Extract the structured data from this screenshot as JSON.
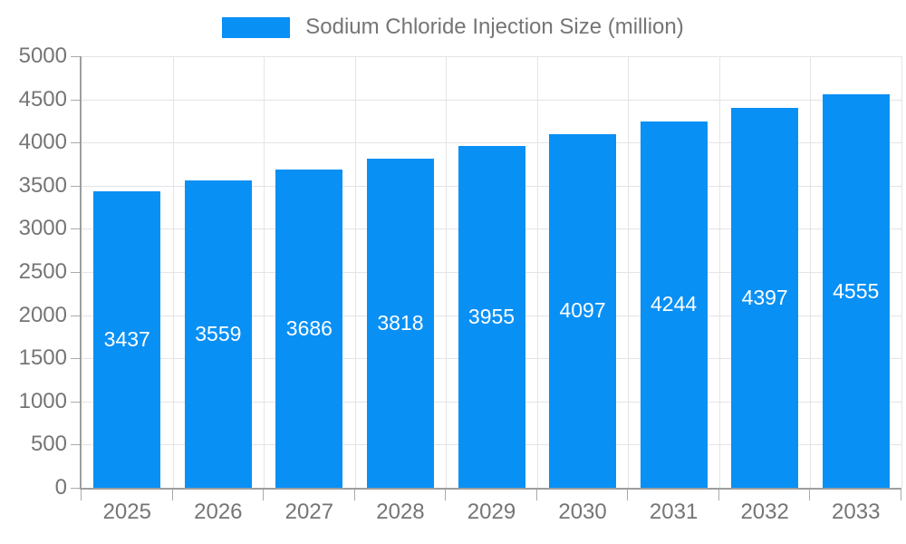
{
  "legend": {
    "label": "Sodium Chloride Injection Size (million)"
  },
  "colors": {
    "bar": "#0990f5",
    "grid": "#e4e4e8",
    "axis": "#9e9e9e",
    "tick": "#aaaaaa",
    "text": "#757575",
    "bar_label": "#ffffff",
    "background": "#ffffff"
  },
  "chart_data": {
    "type": "bar",
    "title": "Sodium Chloride Injection Size (million)",
    "series_name": "Sodium Chloride Injection Size (million)",
    "categories": [
      "2025",
      "2026",
      "2027",
      "2028",
      "2029",
      "2030",
      "2031",
      "2032",
      "2033"
    ],
    "values": [
      3437,
      3559,
      3686,
      3818,
      3955,
      4097,
      4244,
      4397,
      4555
    ],
    "xlabel": "",
    "ylabel": "",
    "ylim": [
      0,
      5000
    ],
    "ytick_step": 500,
    "grid": true,
    "legend_position": "top-center",
    "value_labels": "inside-middle-white",
    "bar_color": "#0990f5"
  }
}
